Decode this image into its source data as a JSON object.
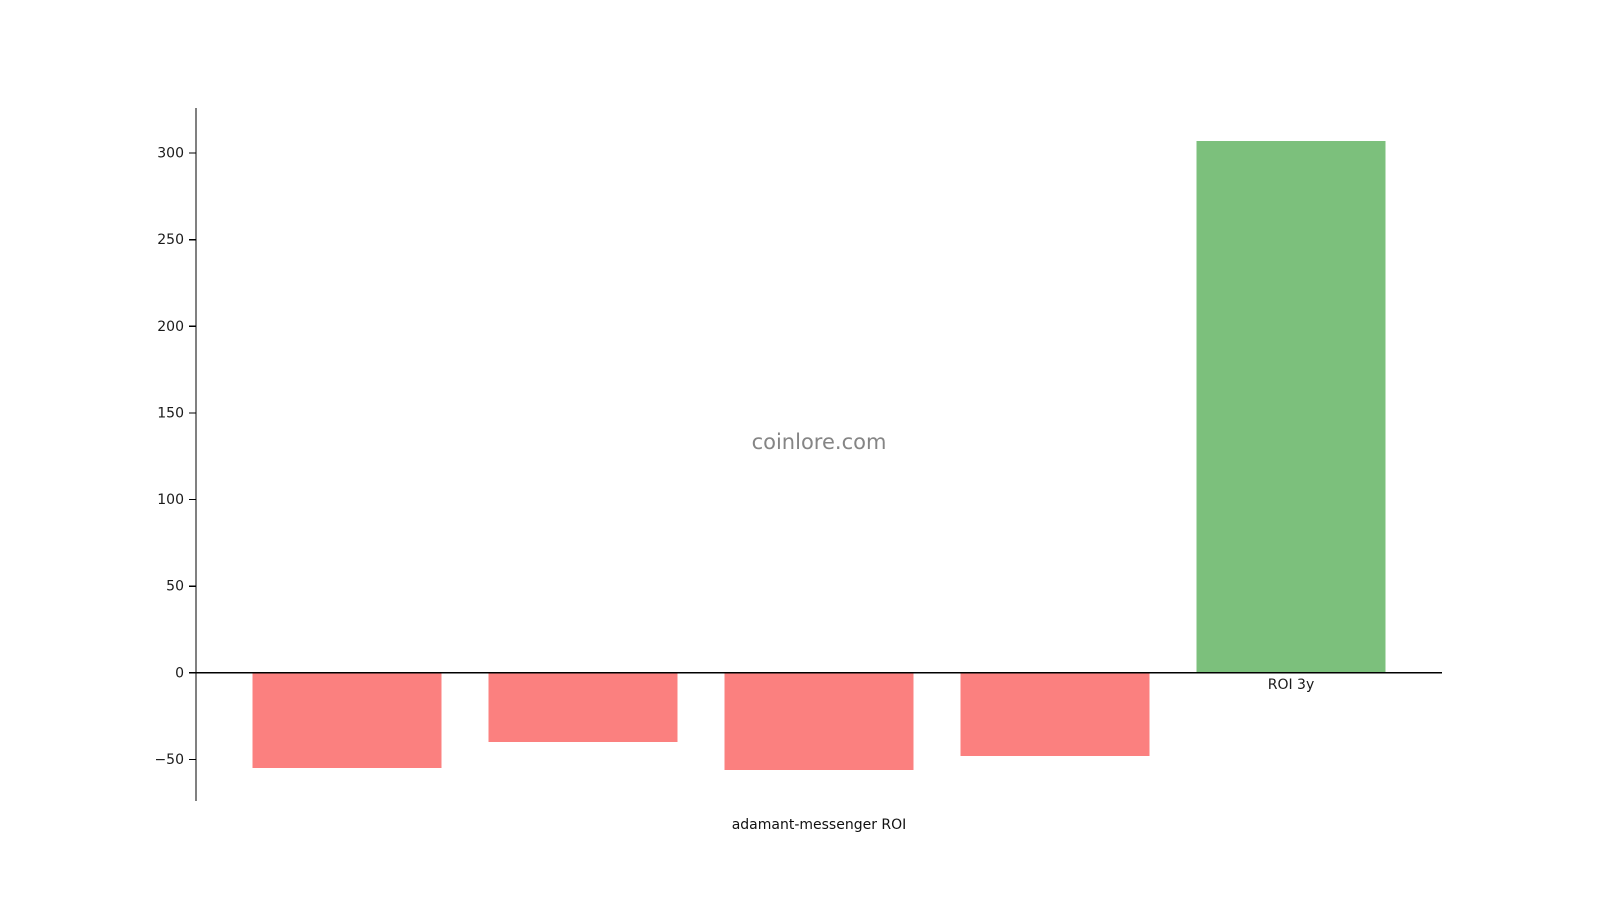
{
  "watermark": "coinlore.com",
  "chart_data": {
    "type": "bar",
    "title": "",
    "xlabel": "adamant-messenger ROI",
    "ylabel": "",
    "categories": [
      "",
      "",
      "",
      "",
      "ROI 3y"
    ],
    "values": [
      -55,
      -40,
      -56,
      -48,
      307
    ],
    "bar_colors": [
      "#fb807f",
      "#fb807f",
      "#fb807f",
      "#fb807f",
      "#7cc07c"
    ],
    "positive_color": "#7cc07c",
    "negative_color": "#fb807f",
    "yticks": [
      -50,
      0,
      50,
      100,
      150,
      200,
      250,
      300
    ],
    "ylim": [
      -74,
      326
    ],
    "grid": false,
    "legend": "none",
    "axis_color": "#000000",
    "tick_label_color": "#1a1a1a"
  }
}
